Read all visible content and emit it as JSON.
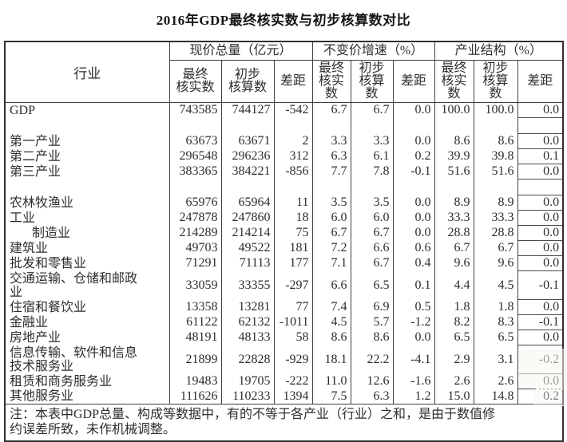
{
  "title": "2016年GDP最终核实数与初步核算数对比",
  "table": {
    "corner_header": "行业",
    "groups": [
      {
        "label": "现价总量（亿元）",
        "cols": [
          "最终\n核实数",
          "初步\n核算数",
          "差距"
        ]
      },
      {
        "label": "不变价增速（%）",
        "cols": [
          "最终\n核实\n数",
          "初步\n核算\n数",
          "差距"
        ]
      },
      {
        "label": "产业结构（%）",
        "cols": [
          "最终\n核实\n数",
          "初步\n核算\n数",
          "差距"
        ]
      }
    ],
    "rows": [
      {
        "label": "GDP",
        "values": [
          "743585",
          "744127",
          "-542",
          "6.7",
          "6.7",
          "0.0",
          "100.0",
          "100.0",
          "0.0"
        ]
      },
      {
        "blank": true
      },
      {
        "label": "第一产业",
        "values": [
          "63673",
          "63671",
          "2",
          "3.3",
          "3.3",
          "0.0",
          "8.6",
          "8.6",
          "0.0"
        ]
      },
      {
        "label": "第二产业",
        "values": [
          "296548",
          "296236",
          "312",
          "6.3",
          "6.1",
          "0.2",
          "39.9",
          "39.8",
          "0.1"
        ]
      },
      {
        "label": "第三产业",
        "values": [
          "383365",
          "384221",
          "-856",
          "7.7",
          "7.8",
          "-0.1",
          "51.6",
          "51.6",
          "0.0"
        ]
      },
      {
        "blank": true
      },
      {
        "label": "农林牧渔业",
        "values": [
          "65976",
          "65964",
          "11",
          "3.5",
          "3.5",
          "0.0",
          "8.9",
          "8.9",
          "0.0"
        ]
      },
      {
        "label": "工业",
        "values": [
          "247878",
          "247860",
          "18",
          "6.0",
          "6.0",
          "0.0",
          "33.3",
          "33.3",
          "0.0"
        ]
      },
      {
        "label": "制造业",
        "indent": true,
        "values": [
          "214289",
          "214214",
          "75",
          "6.7",
          "6.7",
          "0.0",
          "28.8",
          "28.8",
          "0.0"
        ]
      },
      {
        "label": "建筑业",
        "values": [
          "49703",
          "49522",
          "181",
          "7.2",
          "6.6",
          "0.6",
          "6.7",
          "6.7",
          "0.0"
        ]
      },
      {
        "label": "批发和零售业",
        "values": [
          "71291",
          "71113",
          "177",
          "7.1",
          "6.7",
          "0.4",
          "9.6",
          "9.6",
          "0.0"
        ]
      },
      {
        "label": "交通运输、仓储和邮政\n业",
        "values": [
          "33059",
          "33355",
          "-297",
          "6.6",
          "6.5",
          "0.1",
          "4.4",
          "4.5",
          "-0.1"
        ]
      },
      {
        "label": "住宿和餐饮业",
        "values": [
          "13358",
          "13281",
          "77",
          "7.4",
          "6.9",
          "0.5",
          "1.8",
          "1.8",
          "0.0"
        ]
      },
      {
        "label": "金融业",
        "values": [
          "61122",
          "62132",
          "-1011",
          "4.5",
          "5.7",
          "-1.2",
          "8.2",
          "8.3",
          "-0.1"
        ]
      },
      {
        "label": "房地产业",
        "values": [
          "48191",
          "48133",
          "58",
          "8.6",
          "8.6",
          "0.0",
          "6.5",
          "6.5",
          "0.0"
        ]
      },
      {
        "label": "信息传输、软件和信息\n技术服务业",
        "values": [
          "21899",
          "22828",
          "-929",
          "18.1",
          "22.2",
          "-4.1",
          "2.9",
          "3.1",
          "-0.2"
        ]
      },
      {
        "label": "租赁和商务服务业",
        "values": [
          "19483",
          "19705",
          "-222",
          "11.0",
          "12.6",
          "-1.6",
          "2.6",
          "2.6",
          "0.0"
        ]
      },
      {
        "label": "其他服务业",
        "values": [
          "111626",
          "110233",
          "1394",
          "7.5",
          "6.3",
          "1.2",
          "15.0",
          "14.8",
          "0.2"
        ]
      }
    ],
    "note": "注：本表中GDP总量、构成等数据中，有的不等于各产业（行业）之和，是由于数值修\n约误差所致，未作机械调整。"
  },
  "colors": {
    "border": "#3f3f3f",
    "text": "#2e2e2e",
    "background": "#ffffff"
  }
}
